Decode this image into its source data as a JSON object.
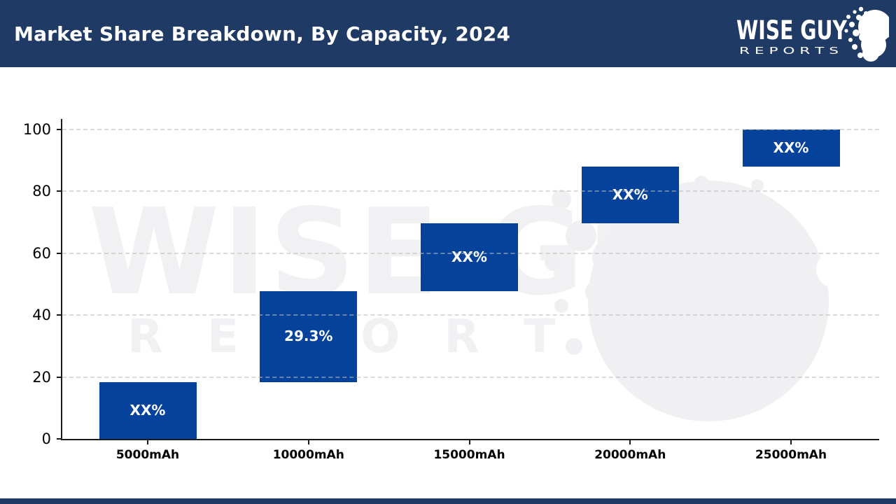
{
  "header": {
    "title": "Market Share Breakdown, By Capacity, 2024",
    "logo": {
      "line1": "WISE GUY",
      "line2": "R E P O R T S"
    }
  },
  "watermark": {
    "line1": "WISE GUY",
    "line2": "R E P O R T S"
  },
  "colors": {
    "header_bg": "#1f3a64",
    "bar": "#04429c",
    "bar_label": "#ffffff",
    "axis": "#1a1a1a",
    "grid": "#bbbbbb",
    "watermark": "#f1f1f4",
    "logo_text": "#ffffff"
  },
  "chart_data": {
    "type": "waterfall",
    "title": "Market Share Breakdown, By Capacity, 2024",
    "categories": [
      "5000mAh",
      "10000mAh",
      "15000mAh",
      "20000mAh",
      "25000mAh"
    ],
    "segments": [
      {
        "category": "5000mAh",
        "start": 0,
        "end": 18.4,
        "height": 18.4,
        "label": "XX%"
      },
      {
        "category": "10000mAh",
        "start": 18.4,
        "end": 47.7,
        "height": 29.3,
        "label": "29.3%"
      },
      {
        "category": "15000mAh",
        "start": 47.7,
        "end": 69.7,
        "height": 22.0,
        "label": "XX%"
      },
      {
        "category": "20000mAh",
        "start": 69.7,
        "end": 87.8,
        "height": 18.1,
        "label": "XX%"
      },
      {
        "category": "25000mAh",
        "start": 87.8,
        "end": 100,
        "height": 12.2,
        "label": "XX%"
      }
    ],
    "yticks": [
      0,
      20,
      40,
      60,
      80,
      100
    ],
    "ylim": [
      0,
      105
    ],
    "xlabel": "",
    "ylabel": "",
    "grid": "horizontal-dashed-over-bars",
    "legend": "none",
    "bar_color": "#04429c"
  }
}
